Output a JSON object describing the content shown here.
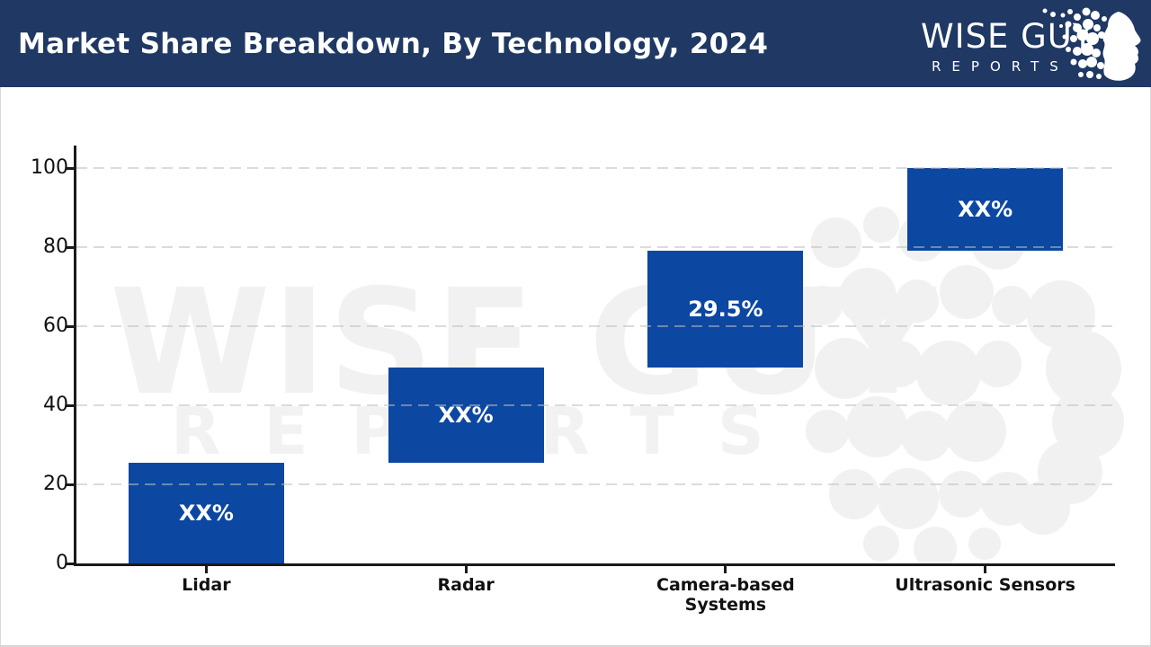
{
  "header": {
    "title": "Market Share Breakdown, By Technology, 2024",
    "logo": {
      "line1": "WISE GUY",
      "line2": "REPORTS"
    }
  },
  "watermark": {
    "line1": "WISE GUY",
    "line2": "REPORTS"
  },
  "colors": {
    "header_background": "#1f3864",
    "bar_blue": "#0c47a1",
    "bar_label_text": "#ffffff",
    "axis_black": "#1a1a1a",
    "watermark_gray": "#f1f1f1"
  },
  "chart_data": {
    "type": "bar",
    "variant": "waterfall-floating-bars",
    "title": "Market Share Breakdown, By Technology, 2024",
    "categories": [
      "Lidar",
      "Radar",
      "Camera-based Systems",
      "Ultrasonic Sensors"
    ],
    "categories_display": [
      "Lidar",
      "Radar",
      "Camera-based\nSystems",
      "Ultrasonic Sensors"
    ],
    "segments": [
      {
        "category": "Lidar",
        "start": 0,
        "end": 25.5,
        "label": "XX%"
      },
      {
        "category": "Radar",
        "start": 25.5,
        "end": 49.5,
        "label": "XX%"
      },
      {
        "category": "Camera-based Systems",
        "start": 49.5,
        "end": 79,
        "label": "29.5%"
      },
      {
        "category": "Ultrasonic Sensors",
        "start": 79,
        "end": 100,
        "label": "XX%"
      }
    ],
    "xlabel": "",
    "ylabel": "",
    "ylim": [
      0,
      100
    ],
    "yticks": [
      0,
      20,
      40,
      60,
      80,
      100
    ],
    "grid": "dashed-horizontal",
    "legend": "none",
    "bar_color": "#0c47a1"
  }
}
